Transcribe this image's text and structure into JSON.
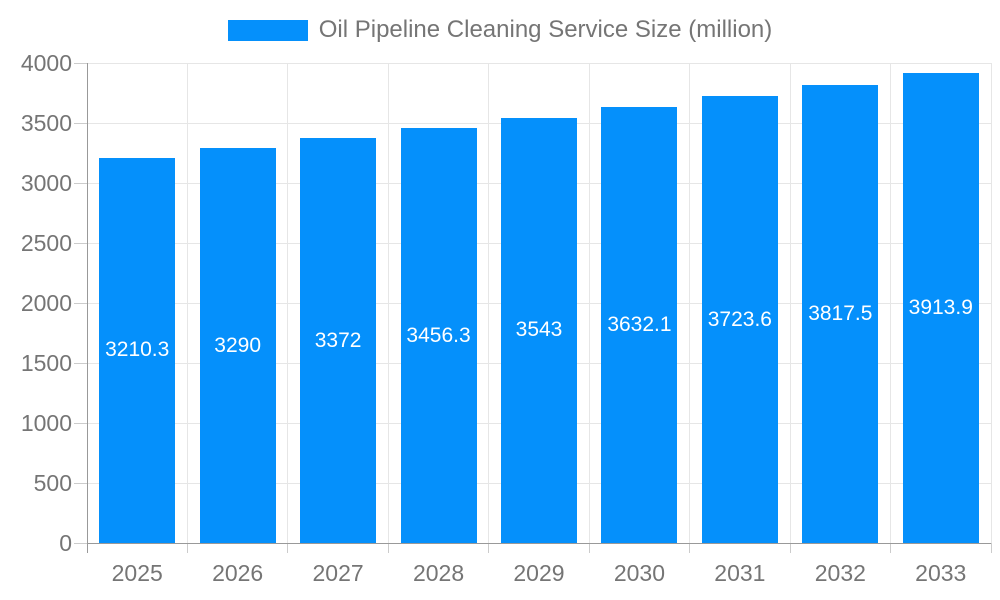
{
  "legend": {
    "label": "Oil Pipeline Cleaning Service Size (million)"
  },
  "chart_data": {
    "type": "bar",
    "title": "Oil Pipeline Cleaning Service Size (million)",
    "categories": [
      "2025",
      "2026",
      "2027",
      "2028",
      "2029",
      "2030",
      "2031",
      "2032",
      "2033"
    ],
    "series": [
      {
        "name": "Oil Pipeline Cleaning Service Size (million)",
        "values": [
          3210.3,
          3290,
          3372,
          3456.3,
          3543,
          3632.1,
          3723.6,
          3817.5,
          3913.9
        ],
        "labels": [
          "3210.3",
          "3290",
          "3372",
          "3456.3",
          "3543",
          "3632.1",
          "3723.6",
          "3817.5",
          "3913.9"
        ]
      }
    ],
    "xlabel": "",
    "ylabel": "",
    "ylim": [
      0,
      4000
    ],
    "ytick_interval": 500,
    "ytick_labels": [
      "0",
      "500",
      "1000",
      "1500",
      "2000",
      "2500",
      "3000",
      "3500",
      "4000"
    ],
    "grid": true,
    "legend_position": "top",
    "label_position": "inside-middle",
    "colors": {
      "bar": "#0590fb",
      "grid": "#e6e6e6",
      "axis": "#999999",
      "tick": "#cccccc",
      "text": "#757575",
      "bar_label": "#ffffff",
      "background": "#ffffff"
    }
  }
}
